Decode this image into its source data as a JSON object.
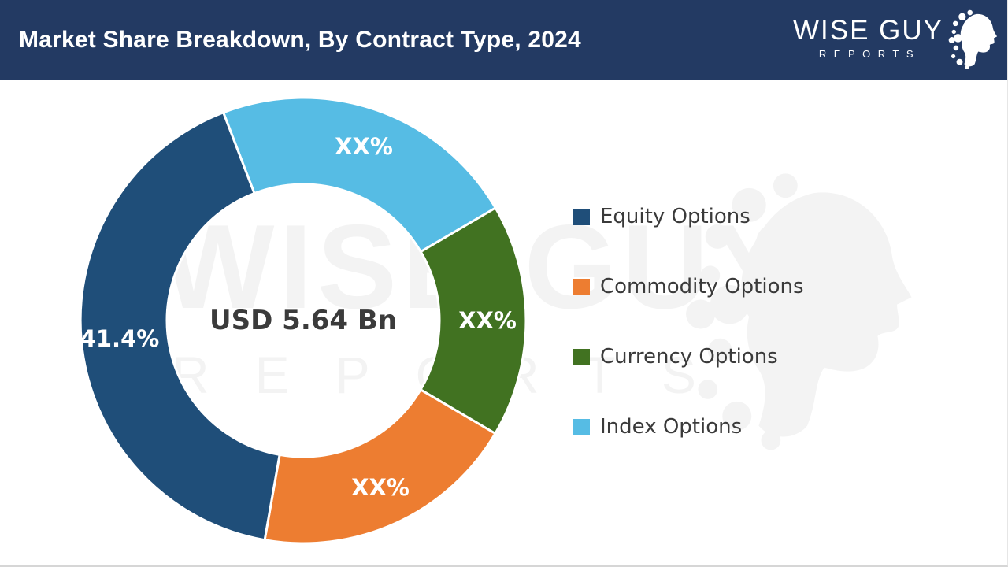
{
  "header": {
    "title": "Market Share Breakdown, By Contract Type, 2024",
    "logo": {
      "name": "WISE GUY",
      "subtitle": "REPORTS"
    }
  },
  "watermark": {
    "line1": "WISE GUY",
    "line2": "REPORTS"
  },
  "chart_data": {
    "type": "pie",
    "subtype": "donut",
    "title": "Market Share Breakdown, By Contract Type, 2024",
    "center_label": "USD 5.64 Bn",
    "donut_hole_ratio": 0.61,
    "start_angle_deg_clockwise_from_top": -21,
    "direction": "counterclockwise",
    "legend_position": "right",
    "segments": [
      {
        "name": "Equity Options",
        "display_label": "41.4%",
        "value_pct": 41.4,
        "pct_is_estimated": false,
        "color": "#1F4E79"
      },
      {
        "name": "Commodity Options",
        "display_label": "XX%",
        "value_pct": 19.3,
        "pct_is_estimated": true,
        "color": "#ED7D31"
      },
      {
        "name": "Currency Options",
        "display_label": "XX%",
        "value_pct": 16.9,
        "pct_is_estimated": true,
        "color": "#417221"
      },
      {
        "name": "Index Options",
        "display_label": "XX%",
        "value_pct": 22.4,
        "pct_is_estimated": true,
        "color": "#56BCE4"
      }
    ]
  },
  "colors": {
    "header_bg": "#233A63",
    "slice_label_text": "#FFFFFF",
    "center_label_text": "#3B3B3B",
    "legend_text": "#3A3A3A",
    "watermark": "#F3F3F3"
  }
}
